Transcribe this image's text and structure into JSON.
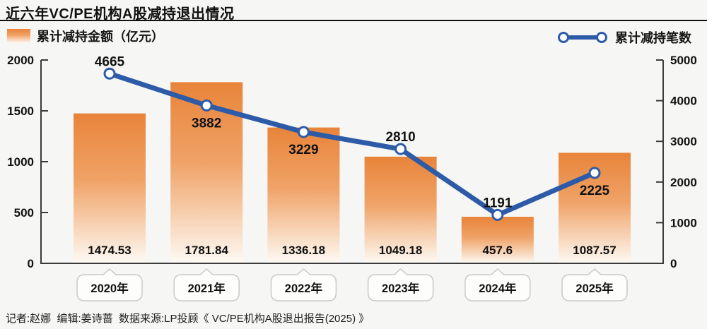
{
  "title": "近六年VC/PE机构A股减持退出情况",
  "footer": "记者:赵娜  编辑:姜诗蔷  数据来源:LP投顾《 VC/PE机构A股退出报告(2025) 》",
  "colors": {
    "background": "#f6f6f4",
    "bar_top": "#e8843a",
    "bar_mid": "#f0a368",
    "bar_bottom": "#fdfaf4",
    "line": "#2d5ba7",
    "marker_fill": "#ffffff",
    "axis": "#3b3b3b",
    "text": "#111111",
    "bubble_fill": "#fdfdfc",
    "bubble_border": "#c9c9c7"
  },
  "chart_data": {
    "type": "bar",
    "title": "近六年VC/PE机构A股减持退出情况",
    "categories": [
      "2020年",
      "2021年",
      "2022年",
      "2023年",
      "2024年",
      "2025年"
    ],
    "series": [
      {
        "name": "累计减持金额（亿元）",
        "type": "bar",
        "axis": "left",
        "values": [
          1474.53,
          1781.84,
          1336.18,
          1049.18,
          457.6,
          1087.57
        ],
        "labels": [
          "1474.53",
          "1781.84",
          "1336.18",
          "1049.18",
          "457.6",
          "1087.57"
        ]
      },
      {
        "name": "累计减持笔数",
        "type": "line",
        "axis": "right",
        "values": [
          4665,
          3882,
          3229,
          2810,
          1191,
          2225
        ],
        "labels": [
          "4665",
          "3882",
          "3229",
          "2810",
          "1191",
          "2225"
        ]
      }
    ],
    "left_axis": {
      "min": 0,
      "max": 2000,
      "ticks": [
        0,
        500,
        1000,
        1500,
        2000
      ]
    },
    "right_axis": {
      "min": 0,
      "max": 5000,
      "ticks": [
        0,
        1000,
        2000,
        3000,
        4000,
        5000
      ]
    },
    "legend_position": "top",
    "grid": false
  }
}
